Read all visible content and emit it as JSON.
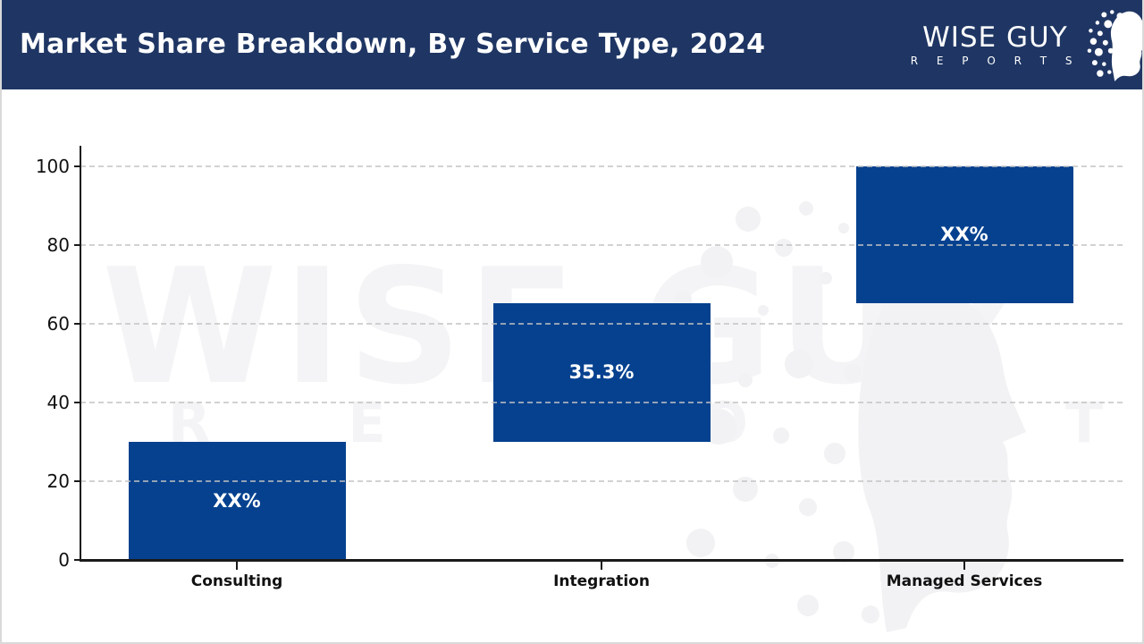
{
  "header": {
    "title": "Market Share Breakdown, By Service Type, 2024",
    "logo": {
      "line1": "WISE GUY",
      "line2": "R E P O R T S"
    }
  },
  "watermark": {
    "line1": "WISE GUY",
    "line2": "R E P O R T S"
  },
  "chart_data": {
    "type": "waterfall",
    "title": "Market Share Breakdown, By Service Type, 2024",
    "categories": [
      "Consulting",
      "Integration",
      "Managed Services"
    ],
    "segments": [
      {
        "category": "Consulting",
        "start": 0,
        "end": 30,
        "label": "XX%"
      },
      {
        "category": "Integration",
        "start": 30,
        "end": 65.3,
        "label": "35.3%"
      },
      {
        "category": "Managed Services",
        "start": 65.3,
        "end": 100,
        "label": "XX%"
      }
    ],
    "yticks": [
      0,
      20,
      40,
      60,
      80,
      100
    ],
    "ylim": [
      0,
      105
    ],
    "xlabel": "",
    "ylabel": "",
    "grid": "horizontal-dashed",
    "legend": "none",
    "bar_color": "#05418F",
    "bar_label_color": "#FFFFFF",
    "grid_color": "#CCCCCC",
    "axis_color": "#1A1A1A",
    "plot_background": "#FFFFFF",
    "header_background": "#1F3664"
  }
}
